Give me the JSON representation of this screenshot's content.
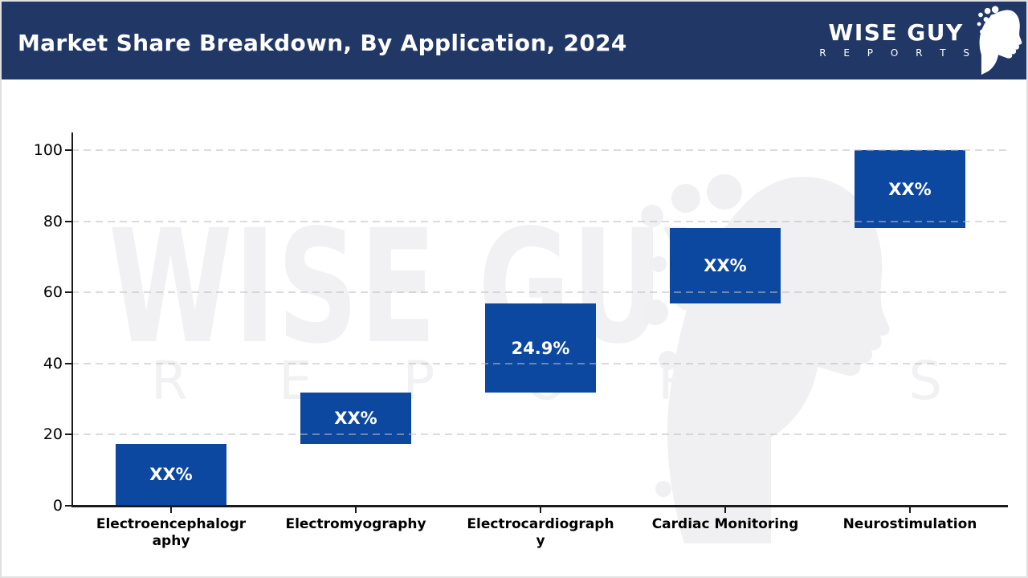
{
  "header": {
    "title": "Market Share Breakdown, By Application, 2024",
    "logo_line1": "WISE GUY",
    "logo_line2": "R E P O R T S"
  },
  "watermark": {
    "line1": "WISE GUY",
    "line2": "R E P O R T S"
  },
  "colors": {
    "header_bg": "#213866",
    "bar_blue": "#0c47a0",
    "grid_gray": "#d9d9d9",
    "watermark_gray": "#f1f1f3",
    "text_white": "#ffffff",
    "axis_black": "#1a1a1a"
  },
  "chart_data": {
    "type": "bar",
    "subtype": "stepped-waterfall-market-share",
    "title": "Market Share Breakdown, By Application, 2024",
    "xlabel": "",
    "ylabel": "",
    "ylim": [
      0,
      100
    ],
    "yticks": [
      0,
      20,
      40,
      60,
      80,
      100
    ],
    "grid": "horizontal-dashed",
    "legend": "none",
    "bar_color": "#0c47a0",
    "categories": [
      "Electroencephalography",
      "Electromyography",
      "Electrocardiography",
      "Cardiac Monitoring",
      "Neurostimulation"
    ],
    "category_display": [
      "Electroencephalogr\naphy",
      "Electromyography",
      "Electrocardiograph\ny",
      "Cardiac Monitoring",
      "Neurostimulation"
    ],
    "segments": [
      {
        "category": "Electroencephalography",
        "start": 0,
        "end": 17.4,
        "label": "XX%"
      },
      {
        "category": "Electromyography",
        "start": 17.4,
        "end": 31.9,
        "label": "XX%"
      },
      {
        "category": "Electrocardiography",
        "start": 31.9,
        "end": 56.8,
        "label": "24.9%"
      },
      {
        "category": "Cardiac Monitoring",
        "start": 56.8,
        "end": 78.0,
        "label": "XX%"
      },
      {
        "category": "Neurostimulation",
        "start": 78.0,
        "end": 100.0,
        "label": "XX%"
      }
    ]
  }
}
